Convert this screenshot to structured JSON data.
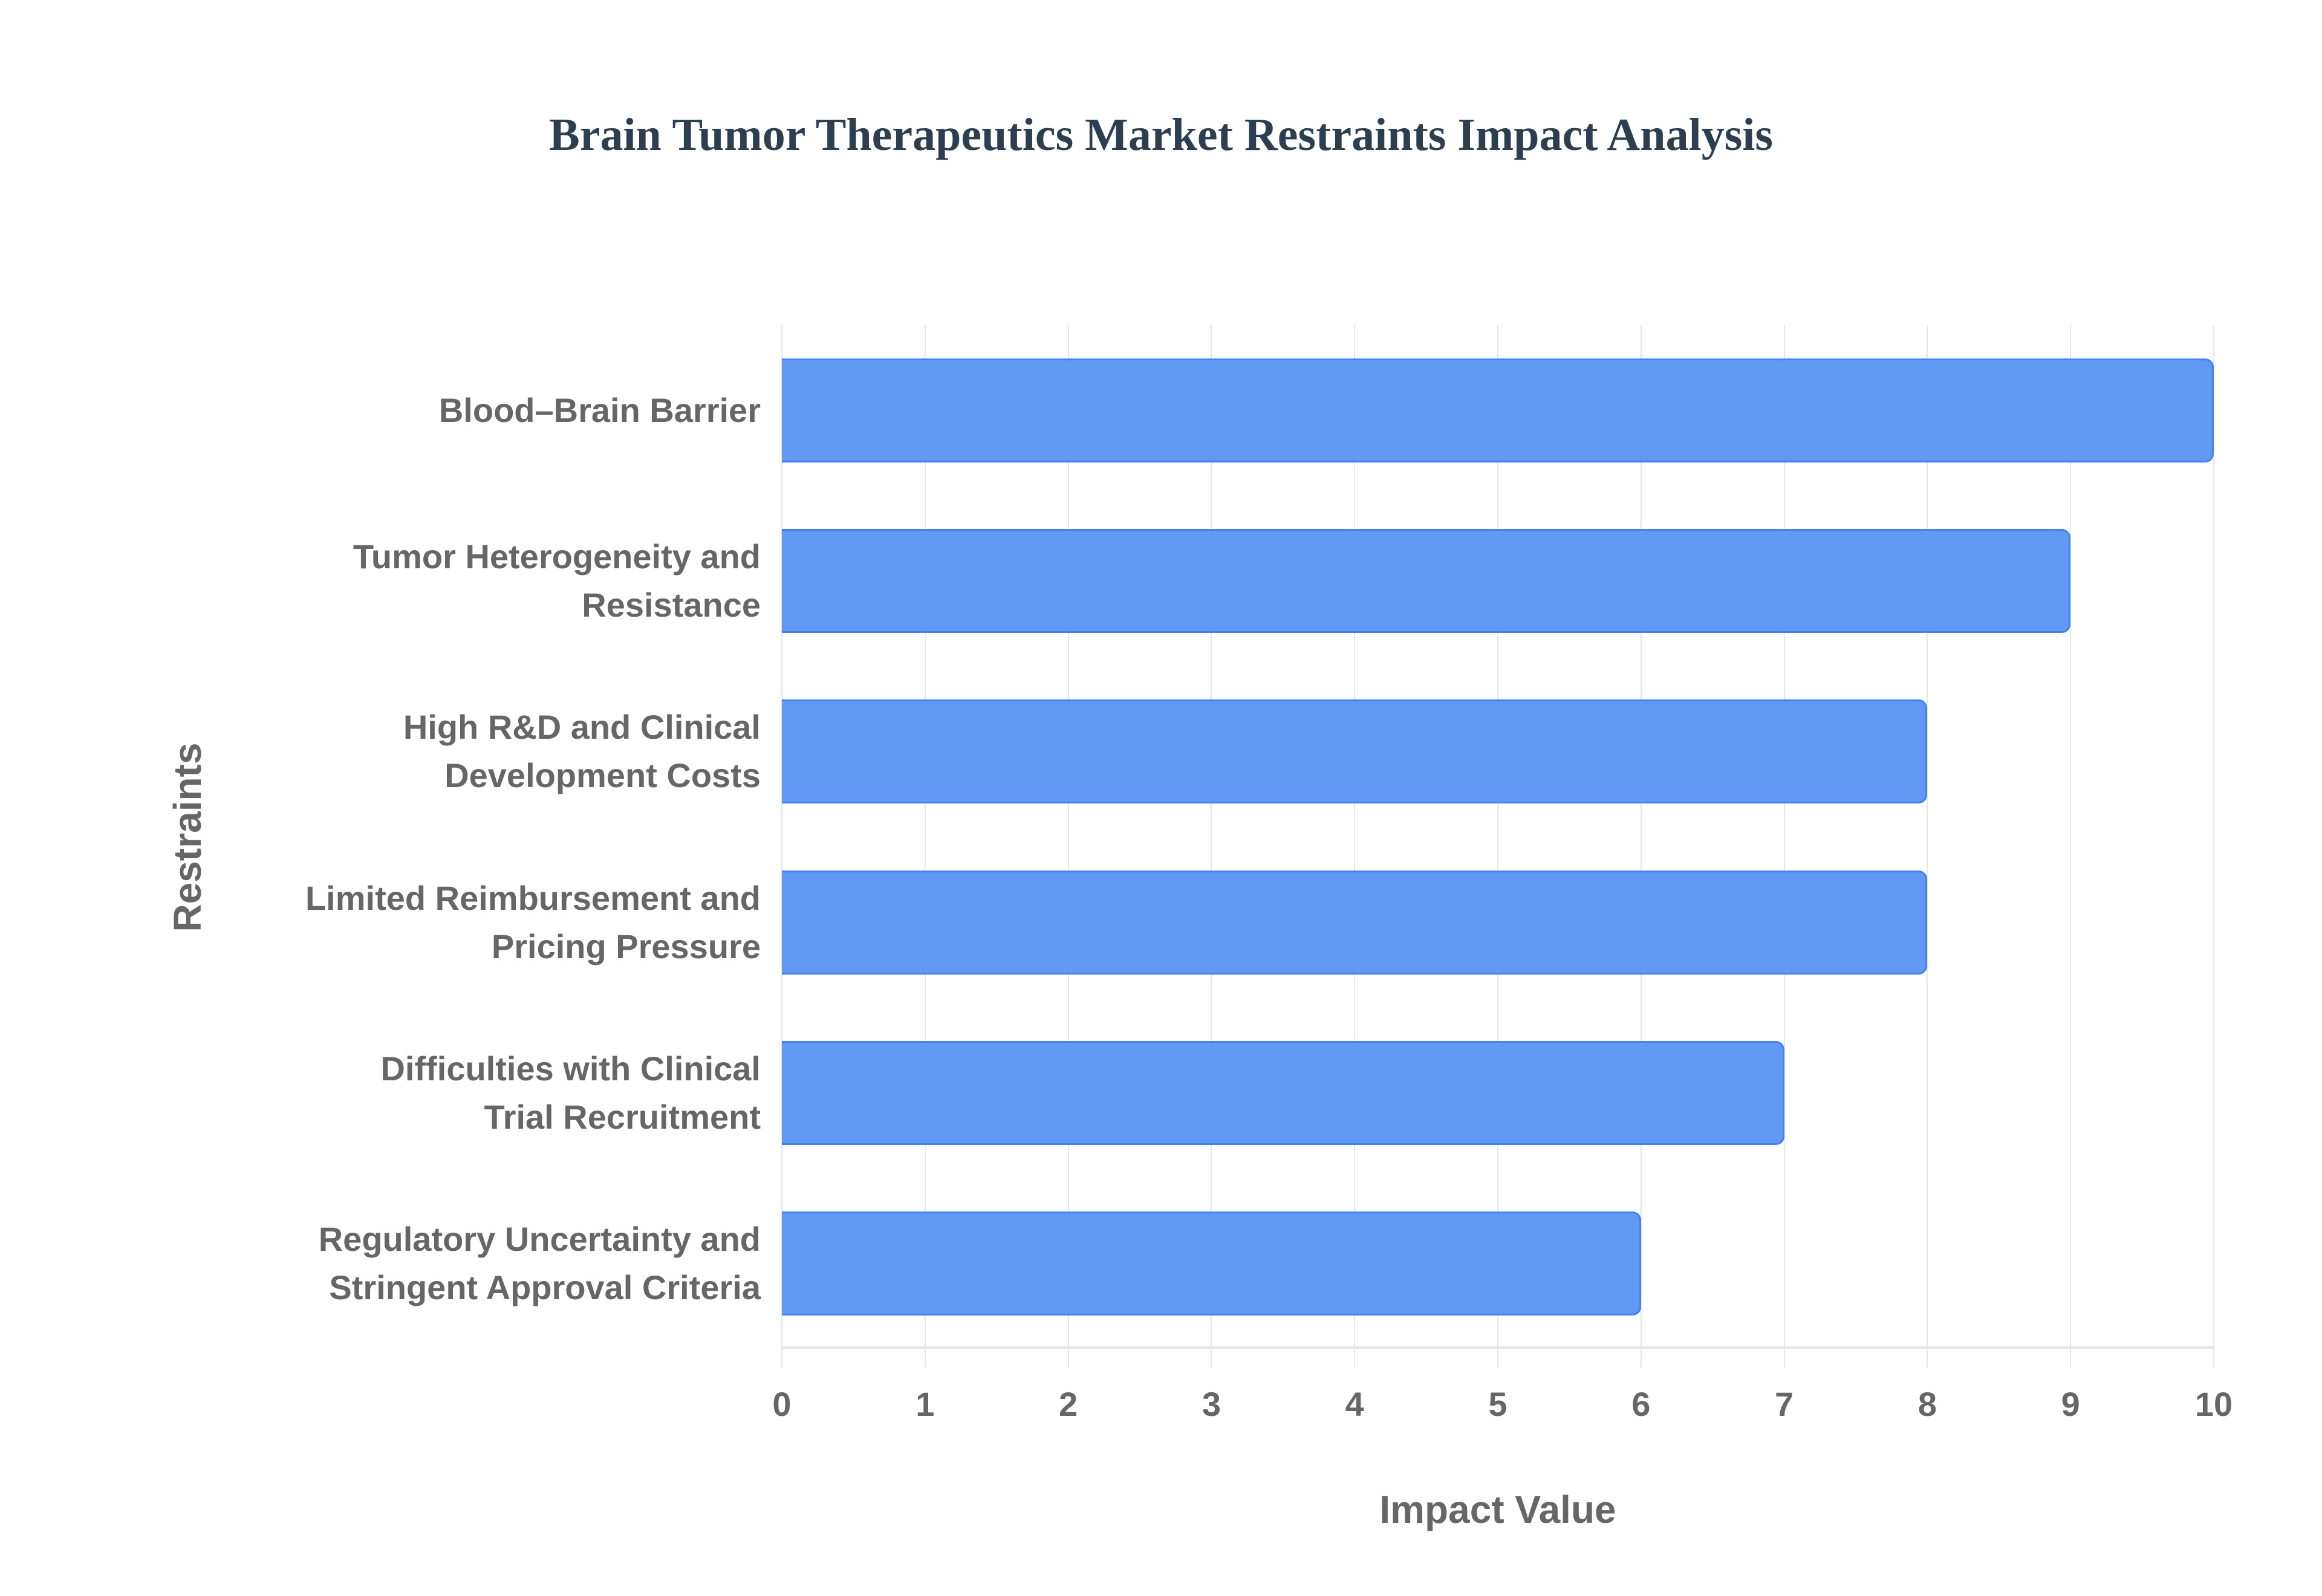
{
  "chart_data": {
    "type": "bar",
    "orientation": "horizontal",
    "title": "Brain Tumor Therapeutics Market Restraints Impact Analysis",
    "xlabel": "Impact Value",
    "ylabel": "Restraints",
    "categories": [
      "Blood–Brain Barrier",
      "Tumor Heterogeneity and Resistance",
      "High R&D and Clinical Development Costs",
      "Limited Reimbursement and Pricing Pressure",
      "Difficulties with Clinical Trial Recruitment",
      "Regulatory Uncertainty and Stringent Approval Criteria"
    ],
    "category_display": [
      "Blood–Brain Barrier",
      "Tumor Heterogeneity and\nResistance",
      "High R&D and Clinical\nDevelopment Costs",
      "Limited Reimbursement and\nPricing Pressure",
      "Difficulties with Clinical\nTrial Recruitment",
      "Regulatory Uncertainty and\nStringent Approval Criteria"
    ],
    "values": [
      10,
      9,
      8,
      8,
      7,
      6
    ],
    "xlim": [
      0,
      10
    ],
    "xticks": [
      "0",
      "1",
      "2",
      "3",
      "4",
      "5",
      "6",
      "7",
      "8",
      "9",
      "10"
    ],
    "grid": true,
    "legend": null,
    "colors": {
      "bar_fill": "#6199f5",
      "bar_border": "#3f82f0",
      "title": "#2c3e50",
      "axis_text": "#666666",
      "grid": "#e6e6e6"
    }
  }
}
